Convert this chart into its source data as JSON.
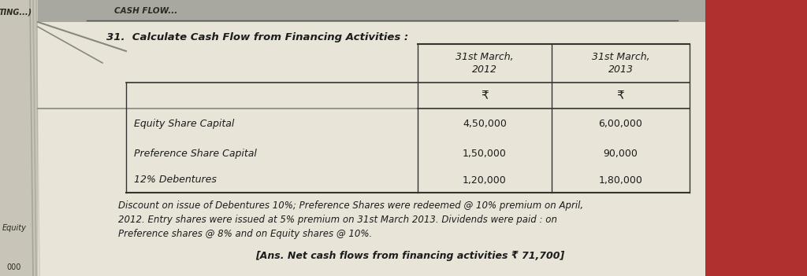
{
  "title": "31.  Calculate Cash Flow from Financing Activities :",
  "currency_symbol": "₹",
  "rows": [
    [
      "Equity Share Capital",
      "4,50,000",
      "6,00,000"
    ],
    [
      "Preference Share Capital",
      "1,50,000",
      "90,000"
    ],
    [
      "12% Debentures",
      "1,20,000",
      "1,80,000"
    ]
  ],
  "footnote1": "Discount on issue of Debentures 10%; Preference Shares were redeemed @ 10% premium on April,",
  "footnote2": "2012. Entry shares were issued at 5% premium on 31st March 2013. Dividends were paid : on",
  "footnote3": "Preference shares @ 8% and on Equity shares @ 10%.",
  "answer": "[Ans. Net cash flows from financing activities ₹ 71,700]",
  "page_bg": "#e8e4d8",
  "table_bg": "#eae6da",
  "text_color": "#1c1c1c",
  "header_top_label1": "TING...)",
  "header_top_label2": "CASH FLOW...",
  "red_bg": "#b03030",
  "gray_top": "#a8a8a0",
  "left_strip_color": "#c8c4b8"
}
